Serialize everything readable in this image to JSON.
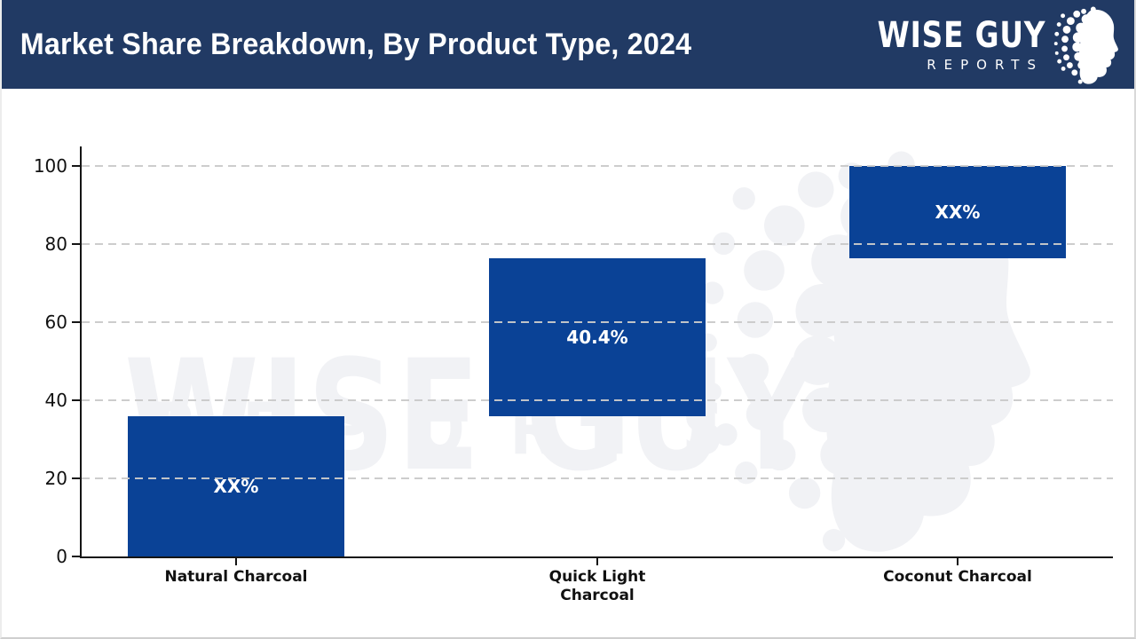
{
  "header": {
    "title": "Market Share Breakdown, By Product Type, 2024",
    "logo": {
      "line1": "WISE GUY",
      "line2": "REPORTS"
    }
  },
  "watermark": {
    "line1": "WISE GUY",
    "line2": "REPORTS"
  },
  "chart_data": {
    "type": "bar",
    "subtype": "waterfall",
    "title": "Market Share Breakdown, By Product Type, 2024",
    "categories": [
      "Natural Charcoal",
      "Quick Light\nCharcoal",
      "Coconut Charcoal"
    ],
    "segments": [
      {
        "category": "Natural Charcoal",
        "start": 0,
        "end": 36,
        "label": "XX%"
      },
      {
        "category": "Quick Light\nCharcoal",
        "start": 36,
        "end": 76.4,
        "label": "40.4%"
      },
      {
        "category": "Coconut Charcoal",
        "start": 76.4,
        "end": 100,
        "label": "XX%"
      }
    ],
    "yticks": [
      0,
      20,
      40,
      60,
      80,
      100
    ],
    "ylim": [
      0,
      100
    ],
    "xlabel": "",
    "ylabel": "",
    "grid": "horizontal-dashed",
    "legend": "none",
    "bar_color": "#0a4296",
    "bar_label_color": "#ffffff"
  },
  "colors": {
    "header_bg": "#213a64",
    "bar": "#0a4296",
    "axis": "#151515",
    "gridline": "#cacaca",
    "watermark": "#f1f2f5"
  }
}
